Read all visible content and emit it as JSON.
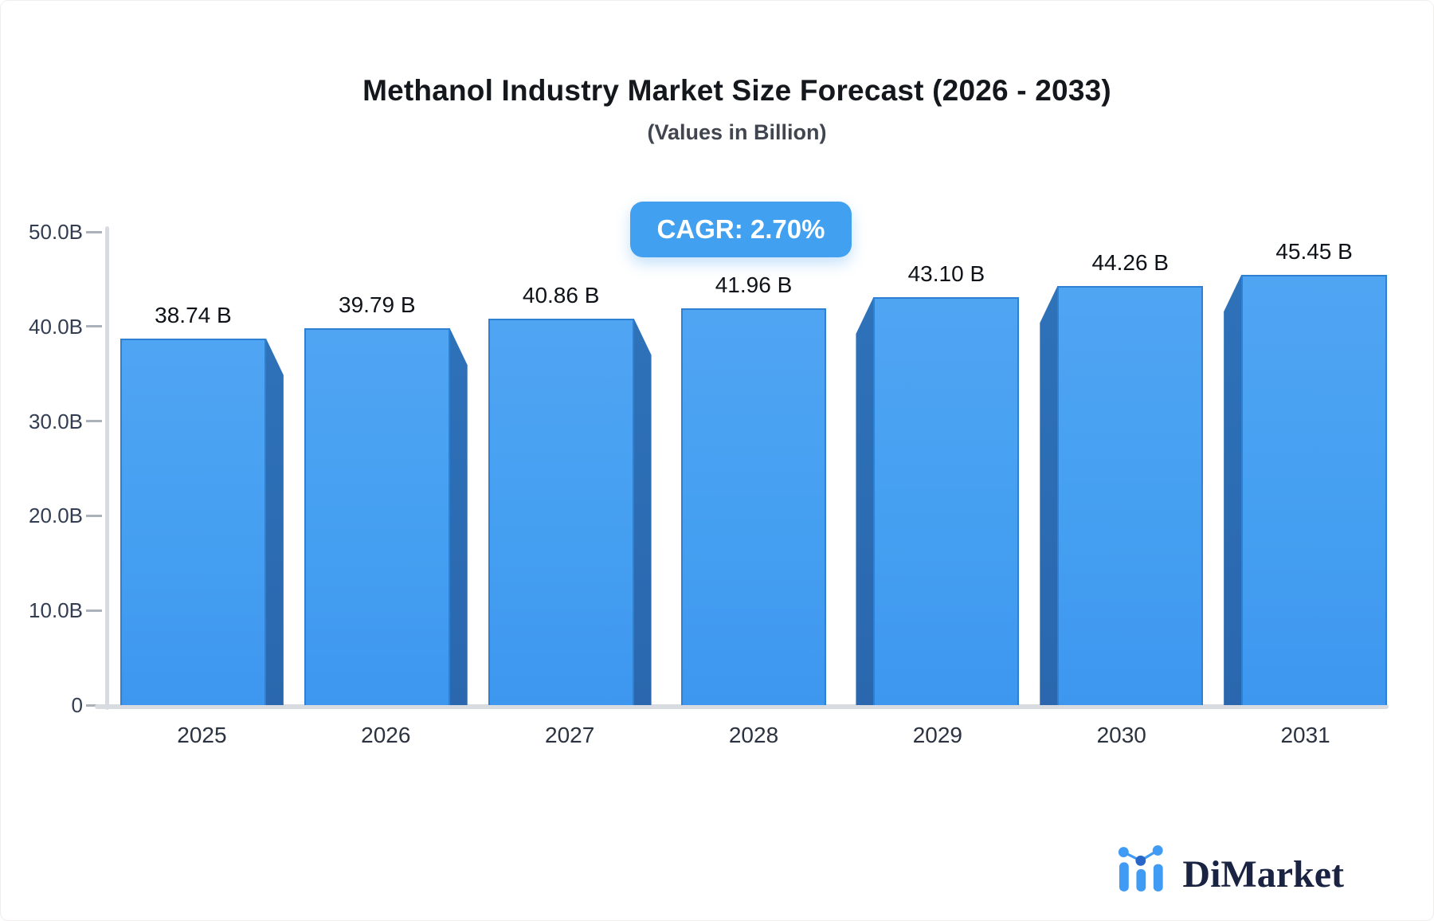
{
  "title": "Methanol Industry Market Size Forecast (2026 - 2033)",
  "subtitle": "(Values in Billion)",
  "cagr_badge": "CAGR: 2.70%",
  "logo": {
    "text": "DiMarket",
    "icon": "bar-chart-trend-icon"
  },
  "colors": {
    "bar_face": "#459ff1",
    "bar_face_border": "#2e80d2",
    "bar_side": "#2c6fb5",
    "badge_bg": "#41a0f0",
    "axis_line": "#d8dbe0",
    "tick_text": "#323d52",
    "logo_navy": "#1a2442",
    "logo_blue": "#3f9bf4"
  },
  "chart_data": {
    "type": "bar",
    "categories": [
      "2025",
      "2026",
      "2027",
      "2028",
      "2029",
      "2030",
      "2031"
    ],
    "values": [
      38.74,
      39.79,
      40.86,
      41.96,
      43.1,
      44.26,
      45.45
    ],
    "value_labels": [
      "38.74 B",
      "39.79 B",
      "40.86 B",
      "41.96 B",
      "43.10 B",
      "44.26 B",
      "45.45 B"
    ],
    "title": "Methanol Industry Market Size Forecast (2026 - 2033)",
    "xlabel": "",
    "ylabel": "",
    "ylim": [
      0,
      50
    ],
    "y_ticks": [
      {
        "label": "50.0B",
        "value": 50
      },
      {
        "label": "40.0B",
        "value": 40
      },
      {
        "label": "30.0B",
        "value": 30
      },
      {
        "label": "20.0B",
        "value": 20
      },
      {
        "label": "10.0B",
        "value": 10
      },
      {
        "label": "0",
        "value": 0
      }
    ],
    "grid": false,
    "legend": "none",
    "bevel_sides": [
      "right",
      "right",
      "right",
      "none",
      "left",
      "left",
      "left"
    ]
  }
}
